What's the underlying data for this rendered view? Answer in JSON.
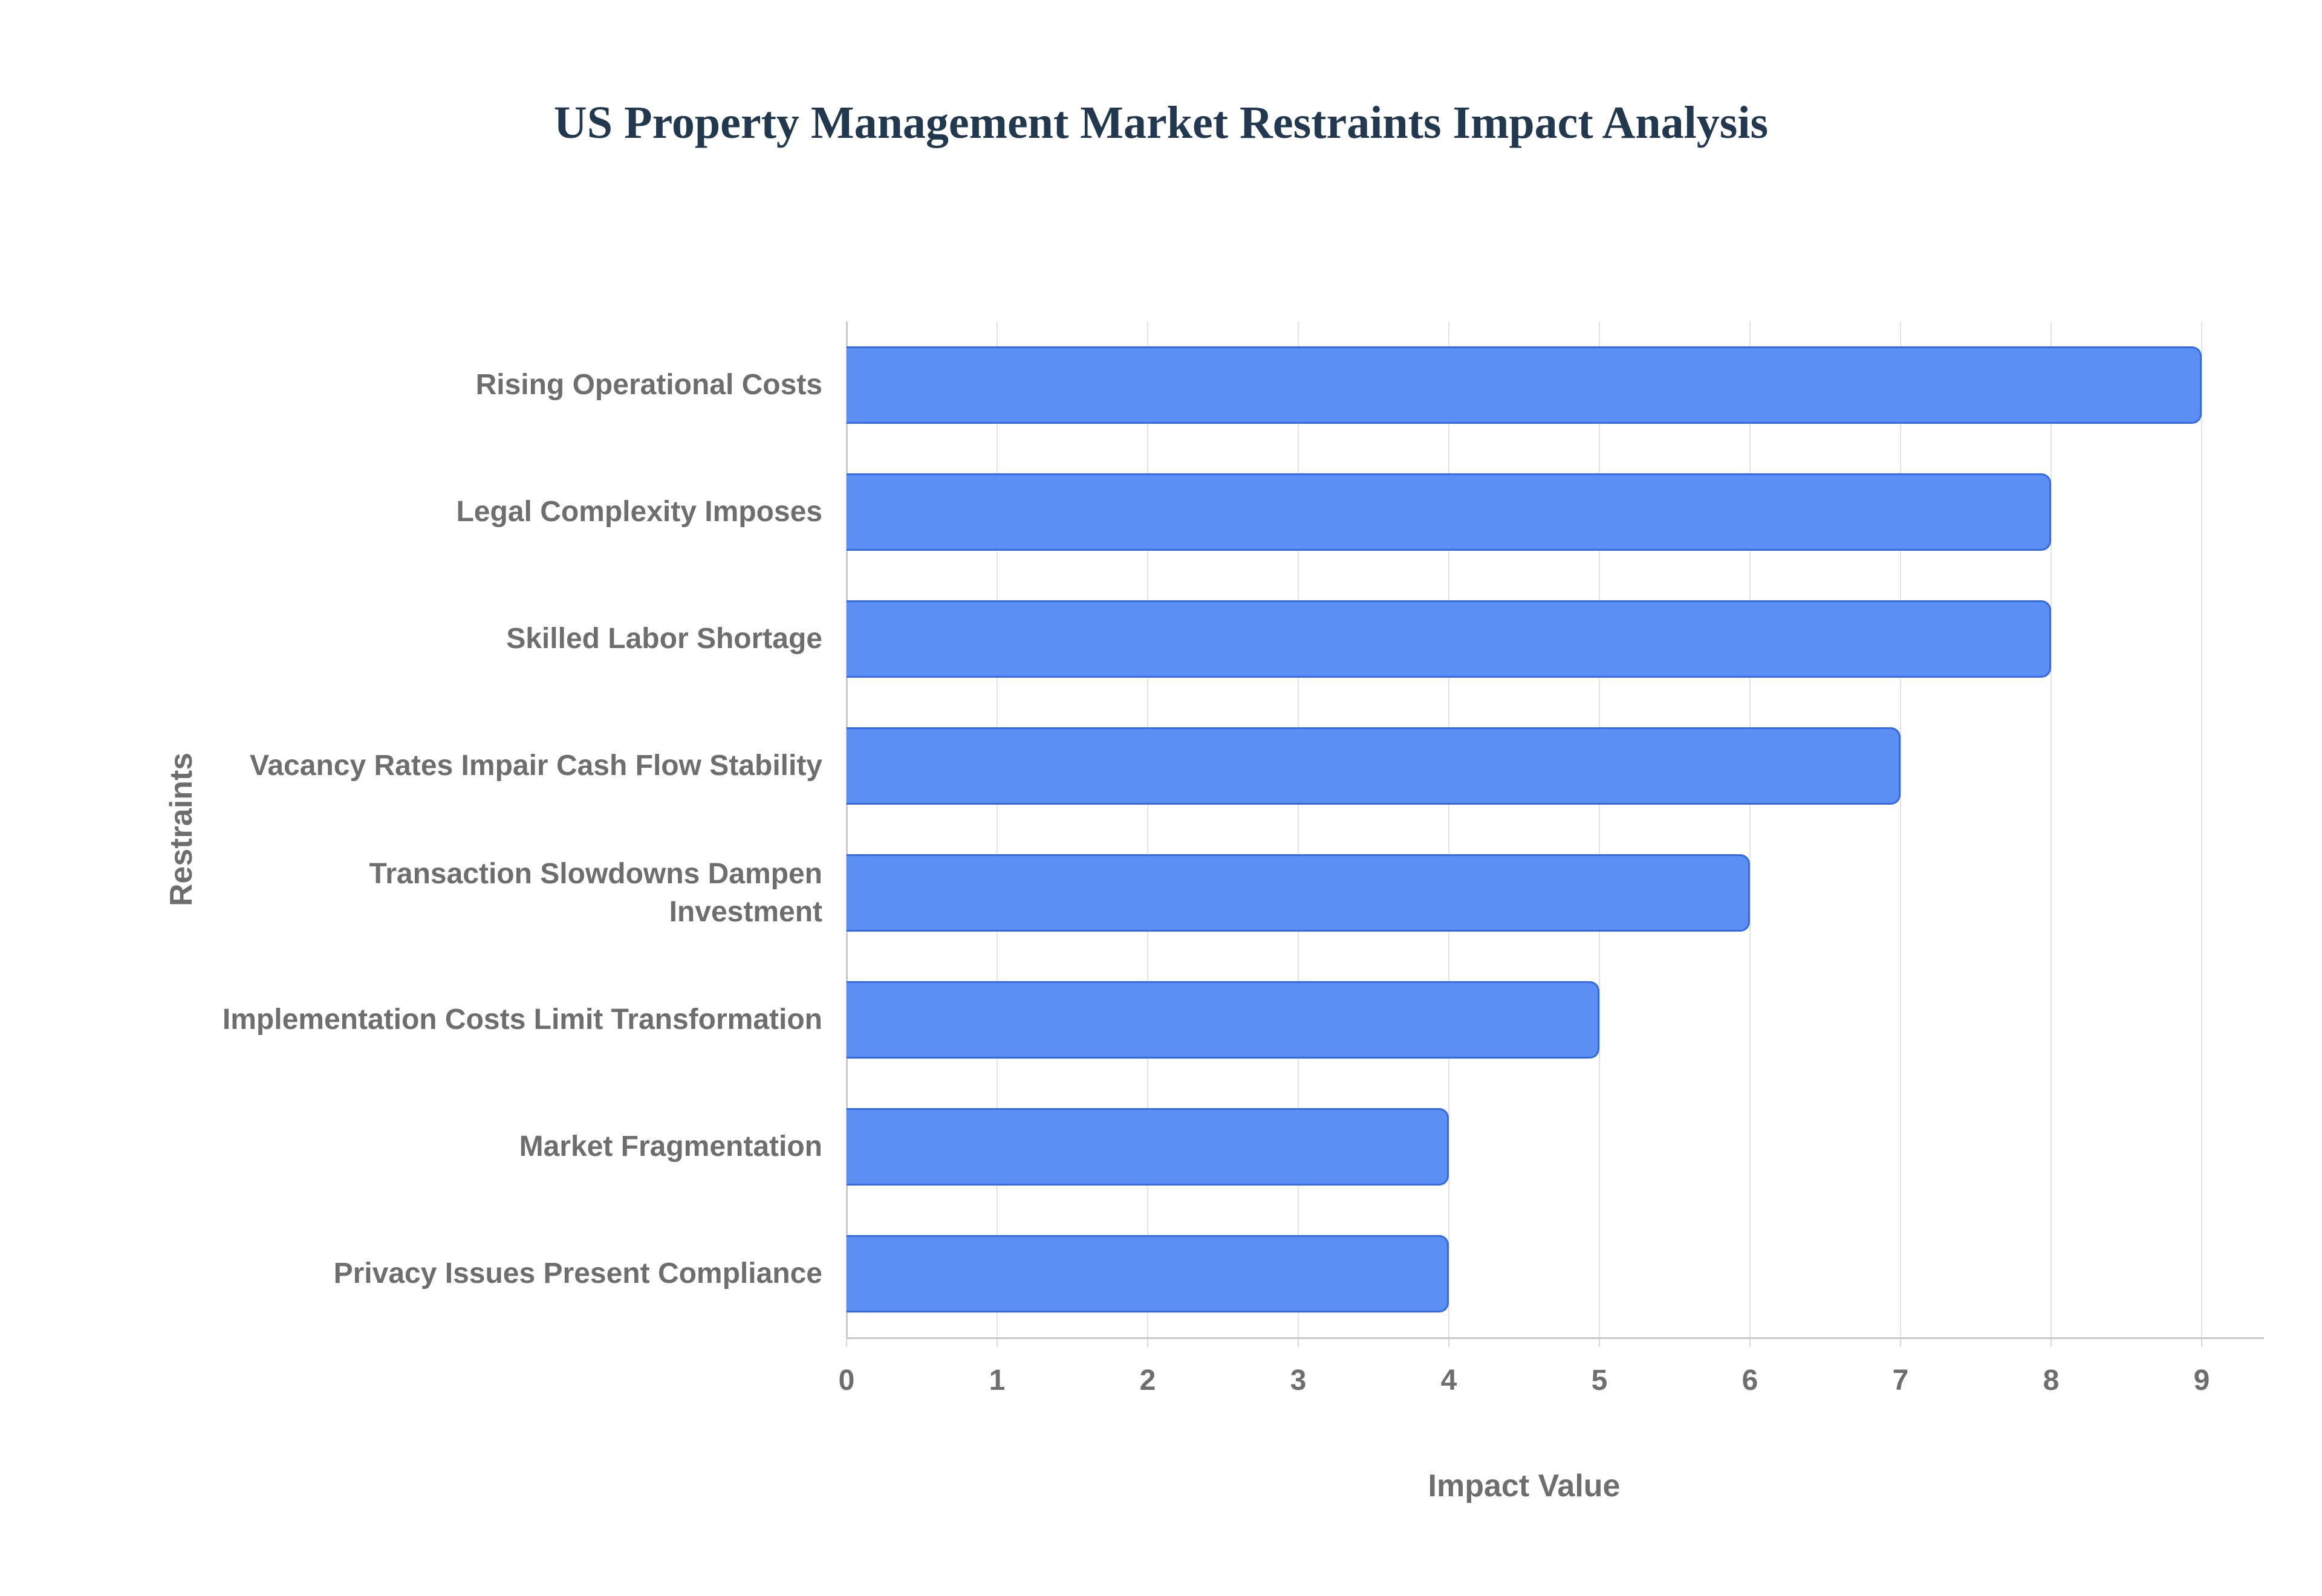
{
  "chart_data": {
    "type": "bar",
    "orientation": "horizontal",
    "title": "US Property Management Market Restraints Impact Analysis",
    "categories": [
      "Rising Operational Costs",
      "Legal Complexity Imposes",
      "Skilled Labor Shortage",
      "Vacancy Rates Impair Cash Flow Stability",
      "Transaction Slowdowns Dampen Investment",
      "Implementation Costs Limit Transformation",
      "Market Fragmentation",
      "Privacy Issues Present Compliance"
    ],
    "values": [
      9,
      8,
      8,
      7,
      6,
      5,
      4,
      4
    ],
    "xlabel": "Impact Value",
    "ylabel": "Restraints",
    "xlim": [
      0,
      9
    ],
    "xticks": [
      "0",
      "1",
      "2",
      "3",
      "4",
      "5",
      "6",
      "7",
      "8",
      "9"
    ],
    "grid": "vertical-only",
    "legend": "none",
    "colors": {
      "bar_fill": "#5b90f2",
      "bar_border": "#3569e6",
      "gridline": "#e3e3e3",
      "axis_line": "#c9c9c9",
      "tick_mark": "#d9d9d9",
      "label_text": "#6e6e6e",
      "title_text": "#22384f"
    }
  }
}
